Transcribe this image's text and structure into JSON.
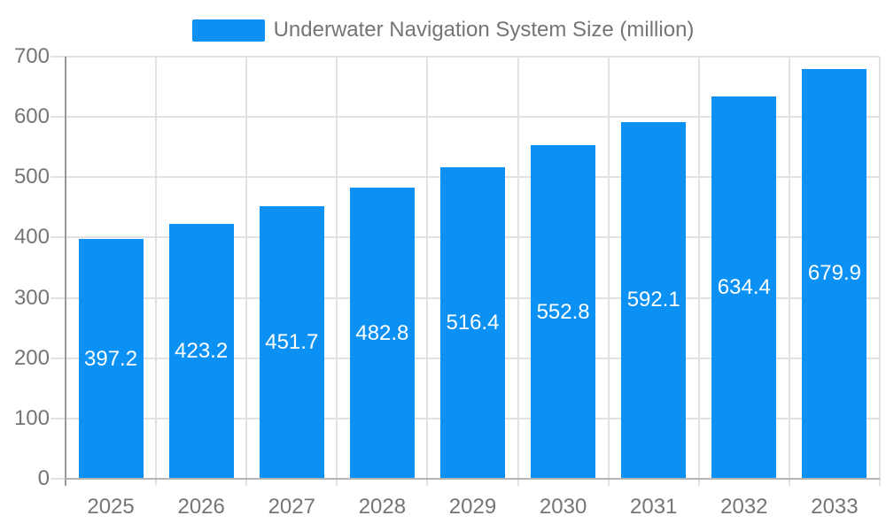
{
  "chart_data": {
    "type": "bar",
    "title": "Underwater Navigation System Size (million)",
    "legend": [
      "Underwater Navigation System Size (million)"
    ],
    "legend_position": "top-center",
    "categories": [
      "2025",
      "2026",
      "2027",
      "2028",
      "2029",
      "2030",
      "2031",
      "2032",
      "2033"
    ],
    "series": [
      {
        "name": "Underwater Navigation System Size (million)",
        "values": [
          397.2,
          423.2,
          451.7,
          482.8,
          516.4,
          552.8,
          592.1,
          634.4,
          679.9
        ]
      }
    ],
    "value_labels": "inside-center",
    "xlabel": "",
    "ylabel": "",
    "ylim": [
      0,
      700
    ],
    "yticks": [
      0,
      100,
      200,
      300,
      400,
      500,
      600,
      700
    ],
    "grid": true,
    "colors": {
      "bar": "#0a91f3",
      "bar_label": "#ffffff",
      "axis_text": "#757575",
      "legend_text": "#757575",
      "grid_line": "#e2e2e2",
      "axis_line": "#999999",
      "baseline": "#b4b4b4",
      "background": "#ffffff"
    }
  }
}
